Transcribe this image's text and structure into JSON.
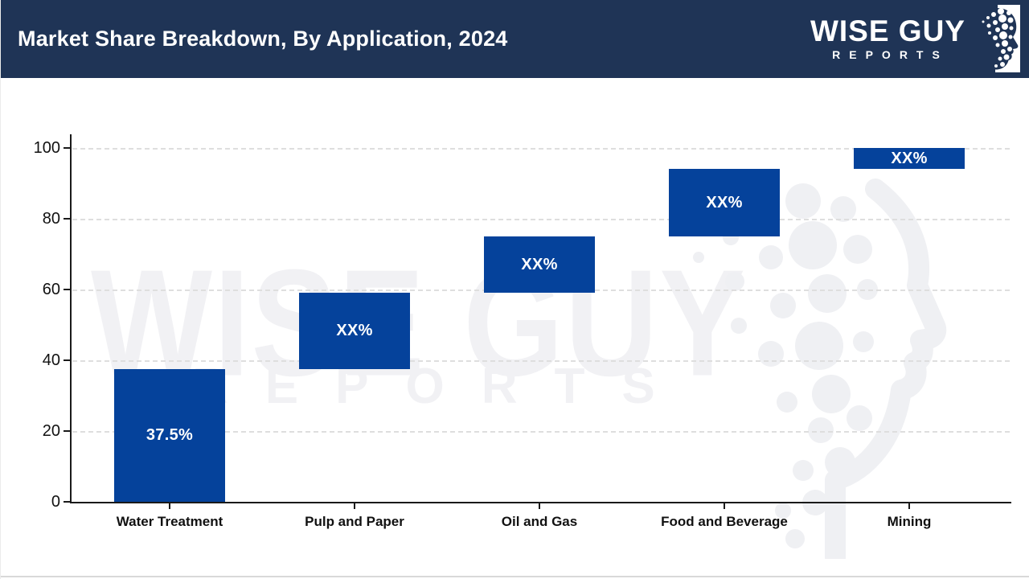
{
  "header": {
    "title": "Market Share Breakdown, By Application, 2024",
    "logo": {
      "line1": "WISE GUY",
      "line2": "REPORTS"
    }
  },
  "watermark": {
    "line1": "WISE GUY",
    "line2": "REPORTS"
  },
  "chart_data": {
    "type": "bar",
    "subtype": "waterfall",
    "title": "Market Share Breakdown, By Application, 2024",
    "categories": [
      "Water Treatment",
      "Pulp and Paper",
      "Oil and Gas",
      "Food and Beverage",
      "Mining"
    ],
    "series": [
      {
        "name": "Market Share (%)",
        "segments": [
          {
            "category": "Water Treatment",
            "start": 0,
            "end": 37.5,
            "label": "37.5%"
          },
          {
            "category": "Pulp and Paper",
            "start": 37.5,
            "end": 59,
            "label": "XX%"
          },
          {
            "category": "Oil and Gas",
            "start": 59,
            "end": 75,
            "label": "XX%"
          },
          {
            "category": "Food and Beverage",
            "start": 75,
            "end": 94,
            "label": "XX%"
          },
          {
            "category": "Mining",
            "start": 94,
            "end": 100,
            "label": "XX%"
          }
        ]
      }
    ],
    "yticks": [
      0,
      20,
      40,
      60,
      80,
      100
    ],
    "ylim": [
      0,
      105
    ],
    "xlabel": "",
    "ylabel": "",
    "legend": "none",
    "grid": "horizontal-dashed",
    "colors": {
      "bar": "#05429b",
      "bar_label": "#ffffff",
      "header_bg": "#1f3456",
      "axis": "#1a1a1a",
      "gridline": "#dedede",
      "watermark": "#f1f1f4"
    }
  }
}
